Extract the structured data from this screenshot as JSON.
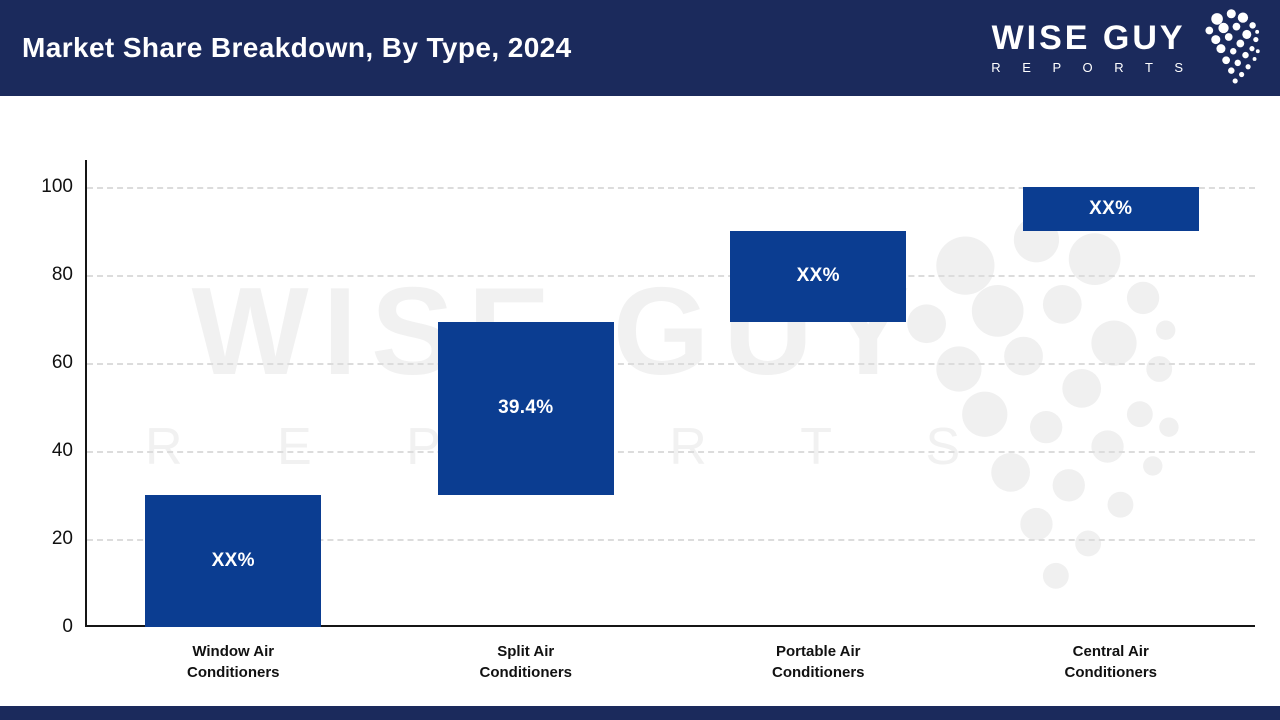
{
  "header": {
    "title": "Market Share Breakdown, By Type, 2024",
    "brand_line1": "WISE GUY",
    "brand_line2": "R E P O R T S",
    "bg_color": "#1b2a5c"
  },
  "watermark": {
    "line1": "WISE GUY",
    "line2": "R E P O R T S"
  },
  "chart_data": {
    "type": "bar",
    "subtype": "floating-waterfall",
    "title": "Market Share Breakdown, By Type, 2024",
    "categories": [
      "Window Air Conditioners",
      "Split Air Conditioners",
      "Portable Air Conditioners",
      "Central Air Conditioners"
    ],
    "bars": [
      {
        "category_lines": [
          "Window Air",
          "Conditioners"
        ],
        "start": 0,
        "end": 30,
        "label": "XX%"
      },
      {
        "category_lines": [
          "Split Air",
          "Conditioners"
        ],
        "start": 30,
        "end": 69.4,
        "label": "39.4%"
      },
      {
        "category_lines": [
          "Portable Air",
          "Conditioners"
        ],
        "start": 69.4,
        "end": 90,
        "label": "XX%"
      },
      {
        "category_lines": [
          "Central Air",
          "Conditioners"
        ],
        "start": 90,
        "end": 100,
        "label": "XX%"
      }
    ],
    "ylim": [
      0,
      100
    ],
    "yticks": [
      0,
      20,
      40,
      60,
      80,
      100
    ],
    "grid": "dashed horizontal",
    "legend": "none",
    "bar_color": "#0b3d91",
    "value_label_color": "#ffffff",
    "grid_color": "#dcdcdc",
    "axis_color": "#151515"
  }
}
